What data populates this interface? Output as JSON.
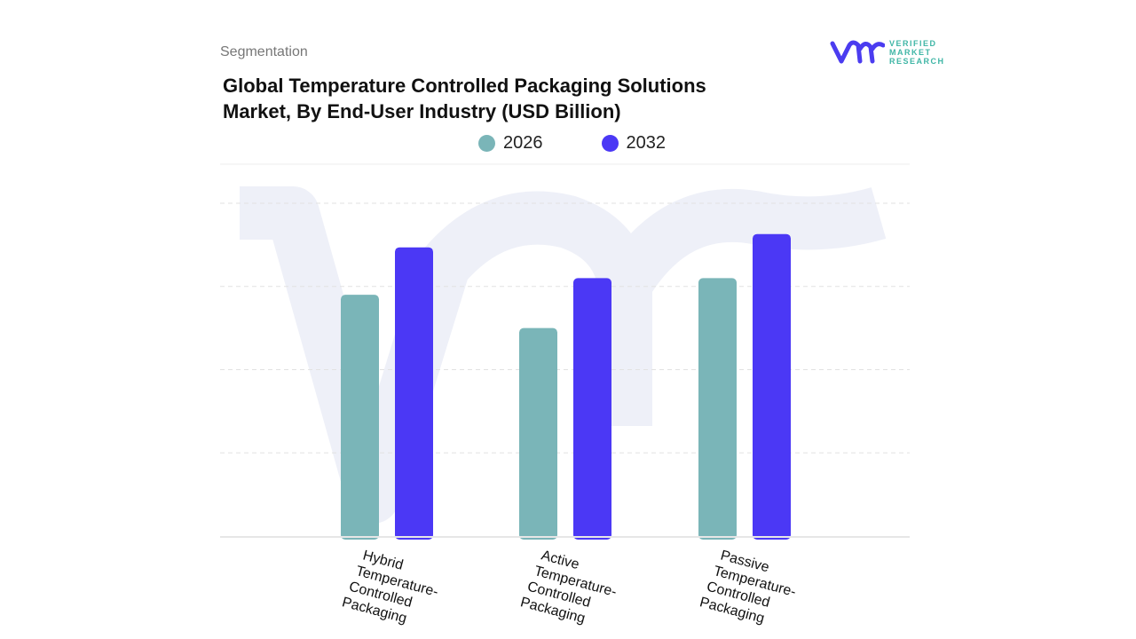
{
  "header": {
    "segment_label": "Segmentation",
    "title_line1": "Global Temperature Controlled Packaging Solutions",
    "title_line2": "Market, By End-User Industry (USD Billion)"
  },
  "logo": {
    "text_line1": "VERIFIED",
    "text_line2": "MARKET",
    "text_line3": "RESEARCH",
    "color": "#4b3cf0"
  },
  "chart_data": {
    "type": "bar",
    "title": "Global Temperature Controlled Packaging Solutions Market, By End-User Industry (USD Billion)",
    "categories": [
      [
        "Hybrid",
        "Temperature-",
        "Controlled",
        "Packaging"
      ],
      [
        "Active",
        "Temperature-",
        "Controlled",
        "Packaging"
      ],
      [
        "Passive",
        "Temperature-",
        "Controlled",
        "Packaging"
      ]
    ],
    "series": [
      {
        "name": "2026",
        "color": "#7ab5b8",
        "values": [
          2.9,
          2.5,
          3.1
        ]
      },
      {
        "name": "2032",
        "color": "#4b38f5",
        "values": [
          3.47,
          3.1,
          3.63
        ]
      }
    ],
    "ylim": [
      0,
      4
    ],
    "grid": true,
    "legend_position": "top"
  }
}
